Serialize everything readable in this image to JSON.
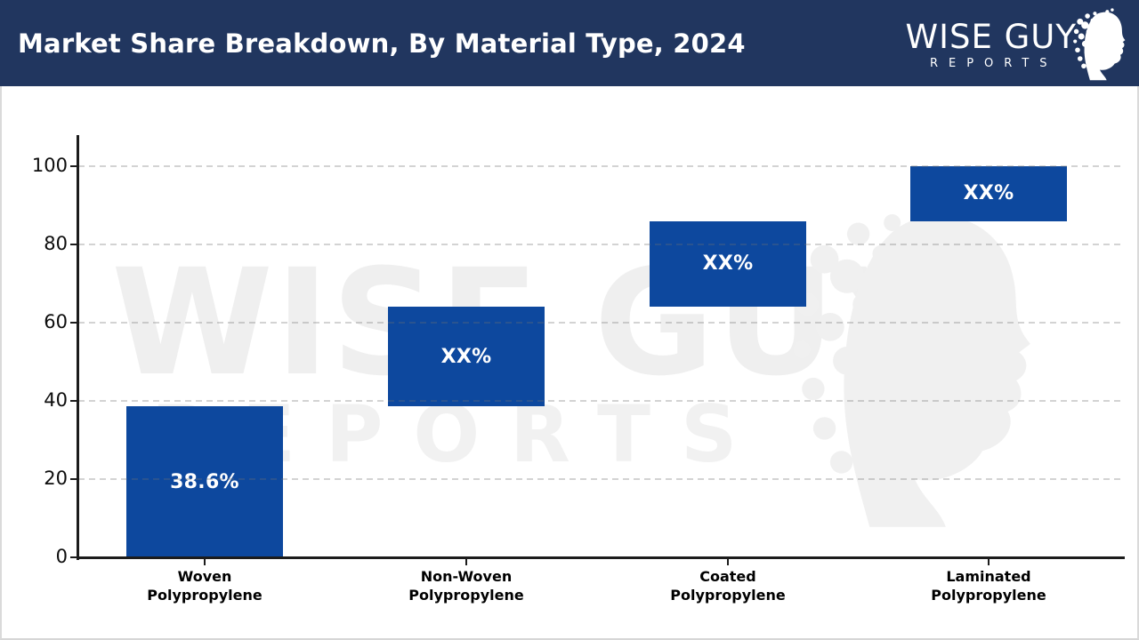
{
  "header": {
    "title": "Market Share Breakdown, By Material Type, 2024",
    "bg_color": "#21365f",
    "logo": {
      "name": "WISE GUY",
      "sub": "REPORTS"
    }
  },
  "watermark": {
    "line1": "WISE GUY",
    "line2": "REPORTS"
  },
  "chart_data": {
    "type": "bar",
    "variant": "floating-waterfall",
    "title": "Market Share Breakdown, By Material Type, 2024",
    "categories": [
      [
        "Woven",
        "Polypropylene"
      ],
      [
        "Non-Woven",
        "Polypropylene"
      ],
      [
        "Coated",
        "Polypropylene"
      ],
      [
        "Laminated",
        "Polypropylene"
      ]
    ],
    "segments": [
      {
        "start": 0,
        "end": 38.6,
        "label": "38.6%"
      },
      {
        "start": 38.6,
        "end": 64,
        "label": "XX%"
      },
      {
        "start": 64,
        "end": 86,
        "label": "XX%"
      },
      {
        "start": 86,
        "end": 100,
        "label": "XX%"
      }
    ],
    "ylim": [
      0,
      105
    ],
    "yticks": [
      0,
      20,
      40,
      60,
      80,
      100
    ],
    "grid": "dashed-horizontal",
    "legend": "none",
    "bar_color": "#0d489e",
    "bar_label_color": "#ffffff",
    "xlabel": "",
    "ylabel": ""
  }
}
